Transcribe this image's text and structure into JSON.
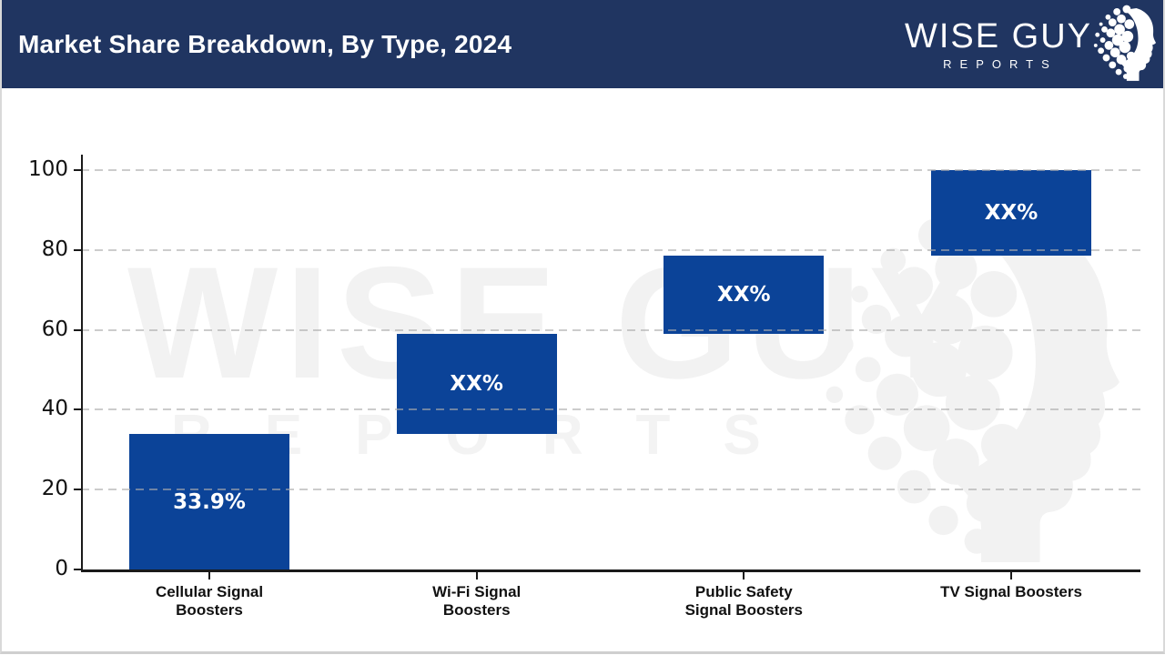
{
  "header": {
    "title": "Market Share Breakdown, By Type, 2024",
    "bg_color": "#203561",
    "logo": {
      "line1": "WISE GUY",
      "line2": "REPORTS"
    }
  },
  "watermark": {
    "line1": "WISE GUY",
    "line2": "REPORTS"
  },
  "chart_data": {
    "type": "bar",
    "subtype": "waterfall",
    "title": "Market Share Breakdown, By Type, 2024",
    "categories": [
      "Cellular Signal Boosters",
      "Wi-Fi Signal Boosters",
      "Public Safety Signal Boosters",
      "TV Signal Boosters"
    ],
    "category_lines": [
      [
        "Cellular Signal",
        "Boosters"
      ],
      [
        "Wi-Fi Signal",
        "Boosters"
      ],
      [
        "Public Safety",
        "Signal Boosters"
      ],
      [
        "TV Signal Boosters"
      ]
    ],
    "segments": [
      {
        "category": "Cellular Signal Boosters",
        "start": 0,
        "end": 33.9,
        "label": "33.9%"
      },
      {
        "category": "Wi-Fi Signal Boosters",
        "start": 33.9,
        "end": 59,
        "label": "XX%"
      },
      {
        "category": "Public Safety Signal Boosters",
        "start": 59,
        "end": 78.7,
        "label": "XX%"
      },
      {
        "category": "TV Signal Boosters",
        "start": 78.7,
        "end": 100,
        "label": "XX%"
      }
    ],
    "yticks": [
      0,
      20,
      40,
      60,
      80,
      100
    ],
    "ylim": [
      0,
      103.5
    ],
    "grid": "dashed-horizontal-on-top",
    "legend": "none",
    "bar_color": "#0b4398",
    "bar_label_color": "#ffffff",
    "axis_color": "#1a1a1a"
  }
}
